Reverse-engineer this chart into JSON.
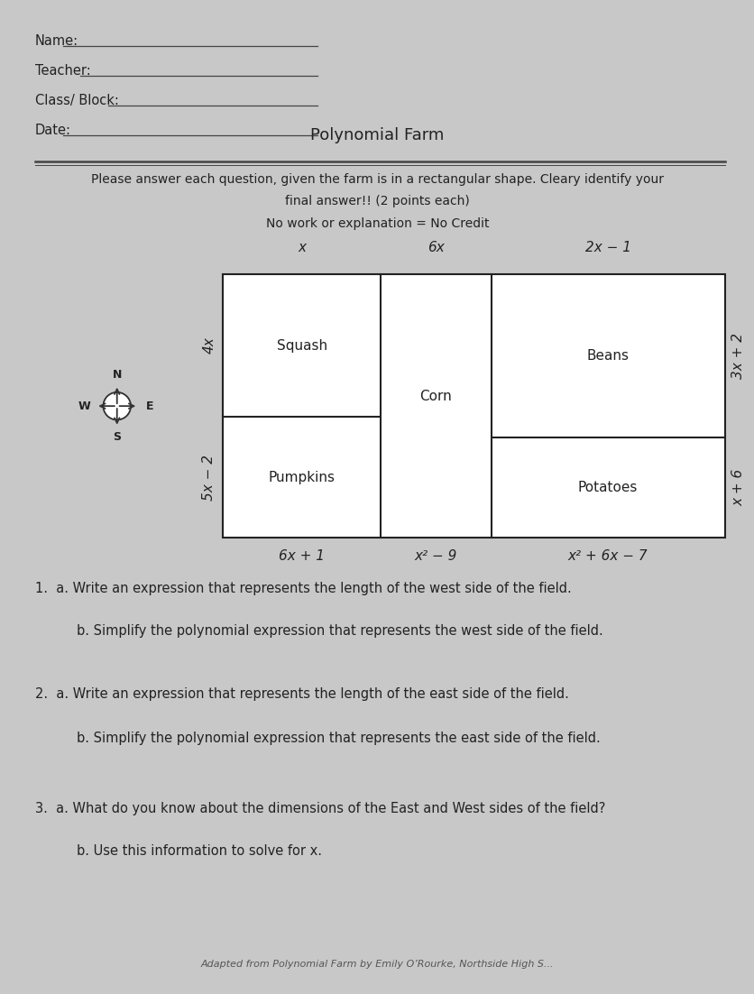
{
  "bg_color": "#c8c8c8",
  "page_width": 8.37,
  "page_height": 11.02,
  "header_fields": [
    "Name:",
    "Teacher:",
    "Class/ Block:",
    "Date:"
  ],
  "title": "Polynomial Farm",
  "inst1": "Please answer each question, given the farm is in a rectangular shape. Cleary identify your",
  "inst2": "final answer!! (2 points each)",
  "inst3": "No work or explanation = No Credit",
  "top_labels": [
    "x",
    "6x",
    "2x − 1"
  ],
  "left_labels": [
    "4x",
    "5x − 2"
  ],
  "right_labels": [
    "3x + 2",
    "x + 6"
  ],
  "bottom_labels": [
    "6x + 1",
    "x² − 9",
    "x² + 6x − 7"
  ],
  "cell_labels": [
    "Squash",
    "Corn",
    "Beans",
    "Pumpkins",
    "Potatoes"
  ],
  "q1a": "1.  a. Write an expression that represents the length of the west side of the field.",
  "q1b": "b. Simplify the polynomial expression that represents the west side of the field.",
  "q2a": "2.  a. Write an expression that represents the length of the east side of the field.",
  "q2b": "b. Simplify the polynomial expression that represents the east side of the field.",
  "q3a": "3.  a. What do you know about the dimensions of the East and West sides of the field?",
  "q3b": "b. Use this information to solve for x.",
  "footer": "Adapted from Polynomial Farm by Emily O’Rourke, Northside High S..."
}
